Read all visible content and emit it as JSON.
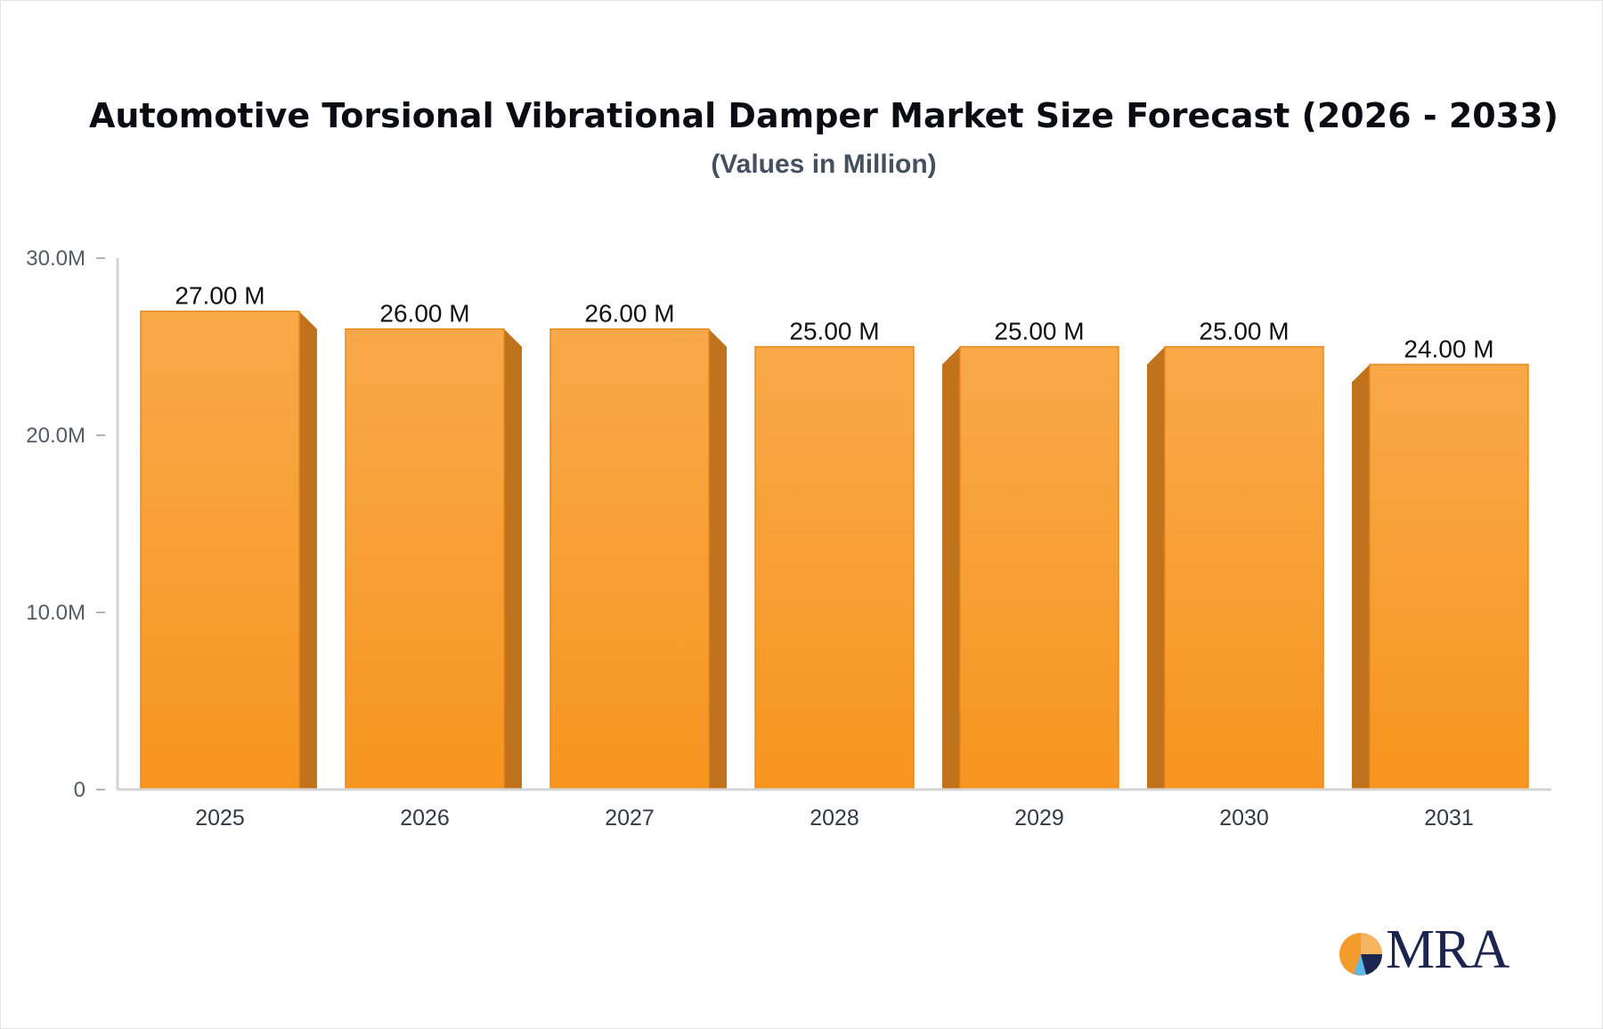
{
  "chart_data": {
    "type": "bar",
    "title": "Automotive Torsional Vibrational Damper Market Size Forecast (2026 - 2033)",
    "subtitle": "(Values in Million)",
    "categories": [
      "2025",
      "2026",
      "2027",
      "2028",
      "2029",
      "2030",
      "2031"
    ],
    "values": [
      27,
      26,
      26,
      25,
      25,
      25,
      24
    ],
    "value_labels": [
      "27.00 M",
      "26.00 M",
      "26.00 M",
      "25.00 M",
      "25.00 M",
      "25.00 M",
      "24.00 M"
    ],
    "y_ticks": [
      {
        "value": 0,
        "label": "0"
      },
      {
        "value": 10,
        "label": "10.0M"
      },
      {
        "value": 20,
        "label": "20.0M"
      },
      {
        "value": 30,
        "label": "30.0M"
      }
    ],
    "ylim": [
      0,
      30
    ],
    "xlabel": "",
    "ylabel": "",
    "grid": false,
    "bar_color": "#f7a03c",
    "bar_side_color": "#c0731c"
  },
  "logo": {
    "text": "MRA",
    "colors": [
      "#f39c2b",
      "#1b2550",
      "#5fb7e6"
    ]
  }
}
